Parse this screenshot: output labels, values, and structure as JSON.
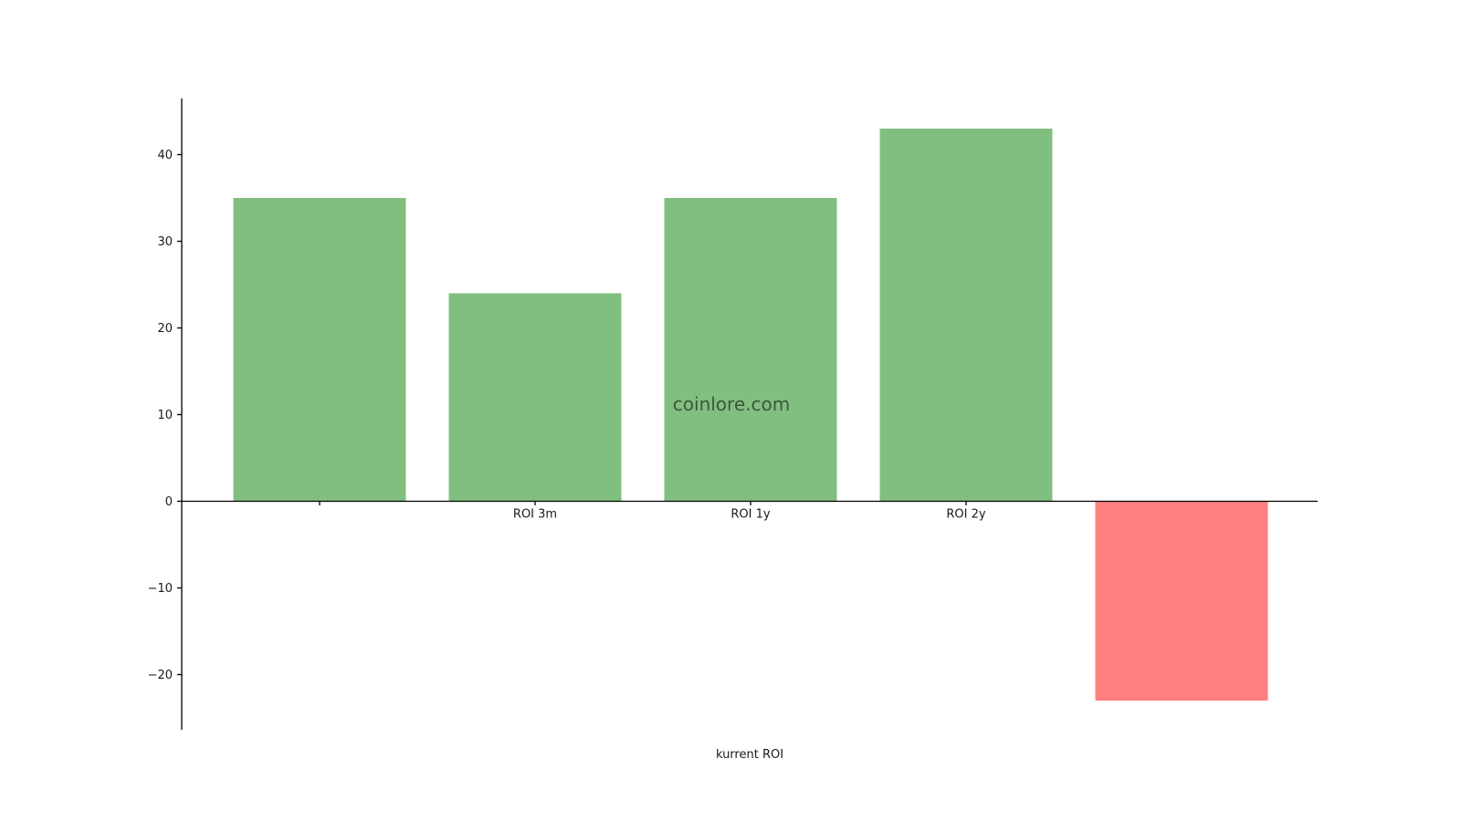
{
  "page": {
    "background": "#ffffff"
  },
  "watermark": {
    "text": "coinlore.com",
    "color": "#000000",
    "opacity": 0.55
  },
  "chart_data": {
    "type": "bar",
    "categories": [
      "",
      "ROI 3m",
      "ROI 1y",
      "ROI 2y",
      ""
    ],
    "values": [
      35,
      24,
      35,
      43,
      -23
    ],
    "title": "",
    "xlabel": "kurrent ROI",
    "ylabel": "",
    "y_ticks": [
      40,
      30,
      20,
      10,
      0,
      -10,
      -20
    ],
    "y_tick_labels": [
      "40",
      "30",
      "20",
      "10",
      "0",
      "−10",
      "−20"
    ],
    "ylim": [
      -26.5,
      46.5
    ],
    "positive_color": "#80bf80",
    "negative_color": "#ff8080",
    "axis_color": "#000000",
    "text_color": "#1a1a1a",
    "grid": false,
    "legend": "none"
  }
}
